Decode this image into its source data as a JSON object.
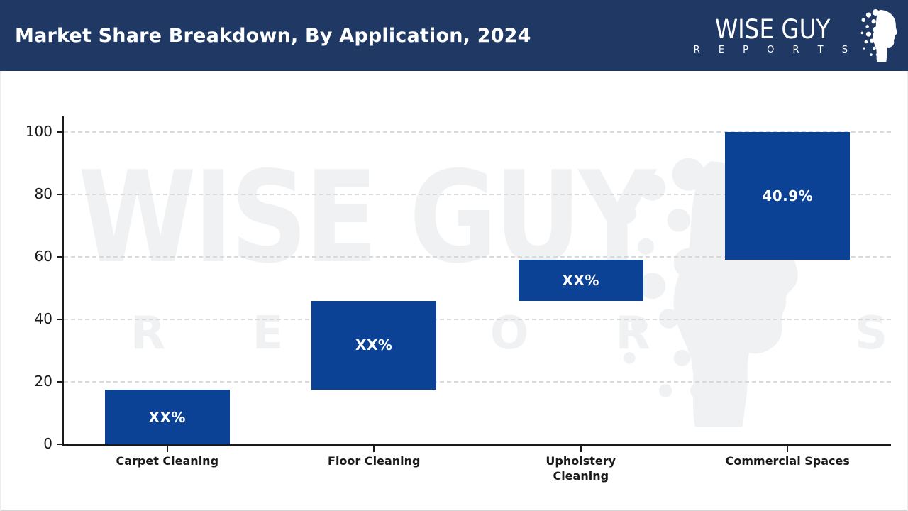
{
  "header": {
    "title": "Market Share Breakdown, By Application, 2024",
    "logo": {
      "line1": "WISE GUY",
      "line2": "R E P O R T S"
    }
  },
  "watermark": {
    "line1": "WISE GUY",
    "line2": "R E P O R T S"
  },
  "colors": {
    "header_bg": "#1F3864",
    "bar_blue": "#0B4296",
    "gridline": "#D9D9D9",
    "axis": "#1A1A1A",
    "watermark": "#F0F1F3",
    "bar_label": "#FFFFFF"
  },
  "chart_data": {
    "type": "bar",
    "subtype": "waterfall-stacked",
    "title": "Market Share Breakdown, By Application, 2024",
    "categories": [
      "Carpet Cleaning",
      "Floor Cleaning",
      "Upholstery Cleaning",
      "Commercial Spaces"
    ],
    "category_labels": [
      "Carpet Cleaning",
      "Floor Cleaning",
      "Upholstery\nCleaning",
      "Commercial Spaces"
    ],
    "segments": [
      {
        "category": "Carpet Cleaning",
        "start": 0,
        "end": 17.5,
        "value": 17.5,
        "label": "XX%"
      },
      {
        "category": "Floor Cleaning",
        "start": 17.5,
        "end": 46.0,
        "value": 28.5,
        "label": "XX%"
      },
      {
        "category": "Upholstery Cleaning",
        "start": 46.0,
        "end": 59.1,
        "value": 13.1,
        "label": "XX%"
      },
      {
        "category": "Commercial Spaces",
        "start": 59.1,
        "end": 100,
        "value": 40.9,
        "label": "40.9%"
      }
    ],
    "xlabel": "",
    "ylabel": "",
    "ylim": [
      0,
      100
    ],
    "yticks": [
      0,
      20,
      40,
      60,
      80,
      100
    ],
    "grid": {
      "horizontal": true,
      "style": "dashed",
      "color": "#D9D9D9"
    },
    "bar_color": "#0B4296",
    "bar_label_color": "#FFFFFF",
    "legend": "none"
  }
}
